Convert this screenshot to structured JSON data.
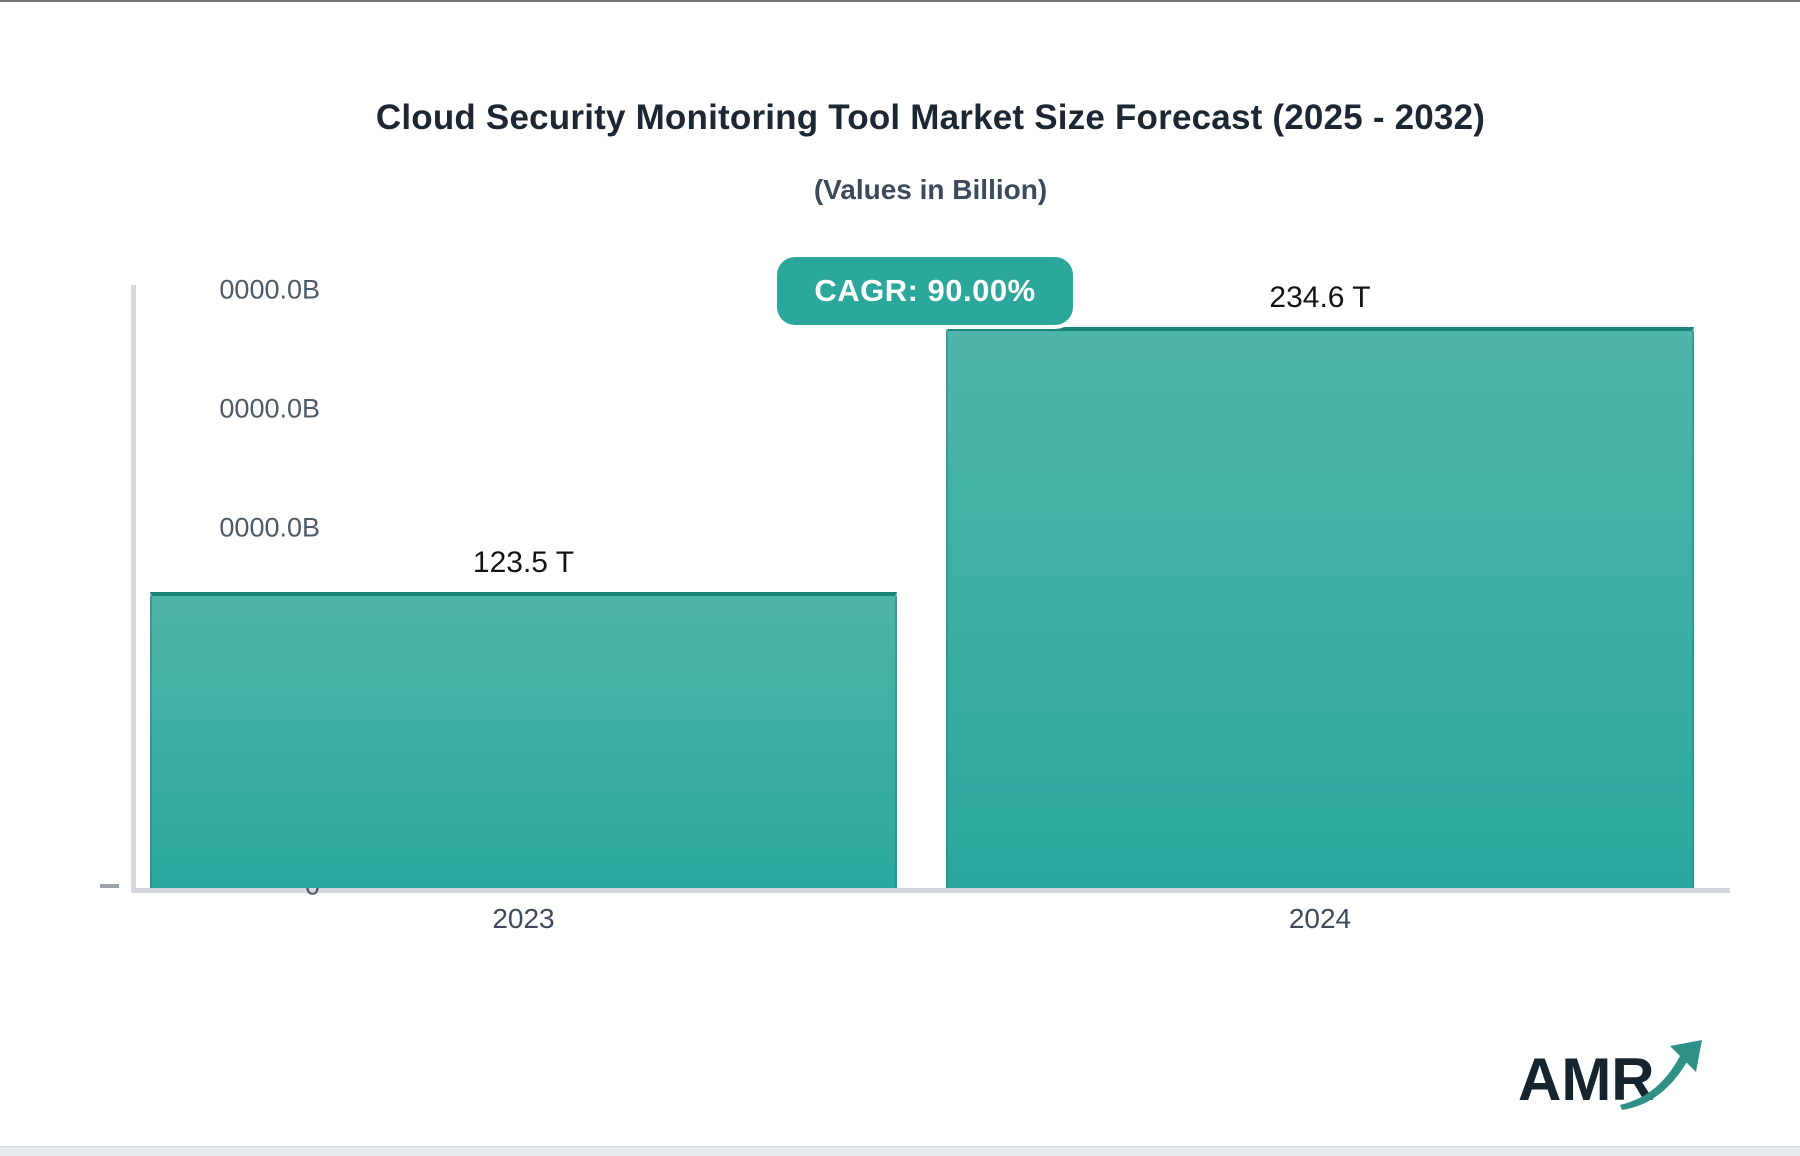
{
  "header": {
    "title": "Cloud Security Monitoring Tool Market Size Forecast (2025 - 2032)",
    "subtitle": "(Values in Billion)"
  },
  "badge": {
    "label": "CAGR: 90.00%"
  },
  "logo": {
    "text": "AMR"
  },
  "colors": {
    "accent_teal": "#2ba79b",
    "bar_gradient_top": "#4fb5ab",
    "bar_gradient_bottom": "#2aa89d",
    "bar_top_border": "#18847c",
    "axis_line": "#d4d8dc",
    "tick_text": "#4d5a68",
    "title_text": "#1d2633",
    "subtitle_text": "#3d4a5c",
    "value_label_text": "#111417",
    "logo_text": "#162430",
    "logo_arrow": "#2f9186"
  },
  "chart_data": {
    "type": "bar",
    "title": "Cloud Security Monitoring Tool Market Size Forecast (2025 - 2032)",
    "subtitle": "(Values in Billion)",
    "xlabel": "",
    "ylabel": "",
    "unit": "Billion",
    "categories": [
      "2023",
      "2024"
    ],
    "values": [
      123500,
      234600
    ],
    "value_labels": [
      "123.5 T",
      "234.6 T"
    ],
    "cagr_percent": 90.0,
    "ylim": [
      0,
      250000
    ],
    "grid": false,
    "legend": false,
    "yticks": [
      {
        "value": 250000,
        "label": "0000.0B",
        "dash": false
      },
      {
        "value": 200000,
        "label": "0000.0B",
        "dash": false
      },
      {
        "value": 150000,
        "label": "0000.0B",
        "dash": false
      },
      {
        "value": 100000,
        "label": "0000.0B",
        "dash": false
      },
      {
        "value": 50000,
        "label": "0000.0B",
        "dash": false
      },
      {
        "value": 0,
        "label": "0",
        "dash": true
      }
    ]
  }
}
